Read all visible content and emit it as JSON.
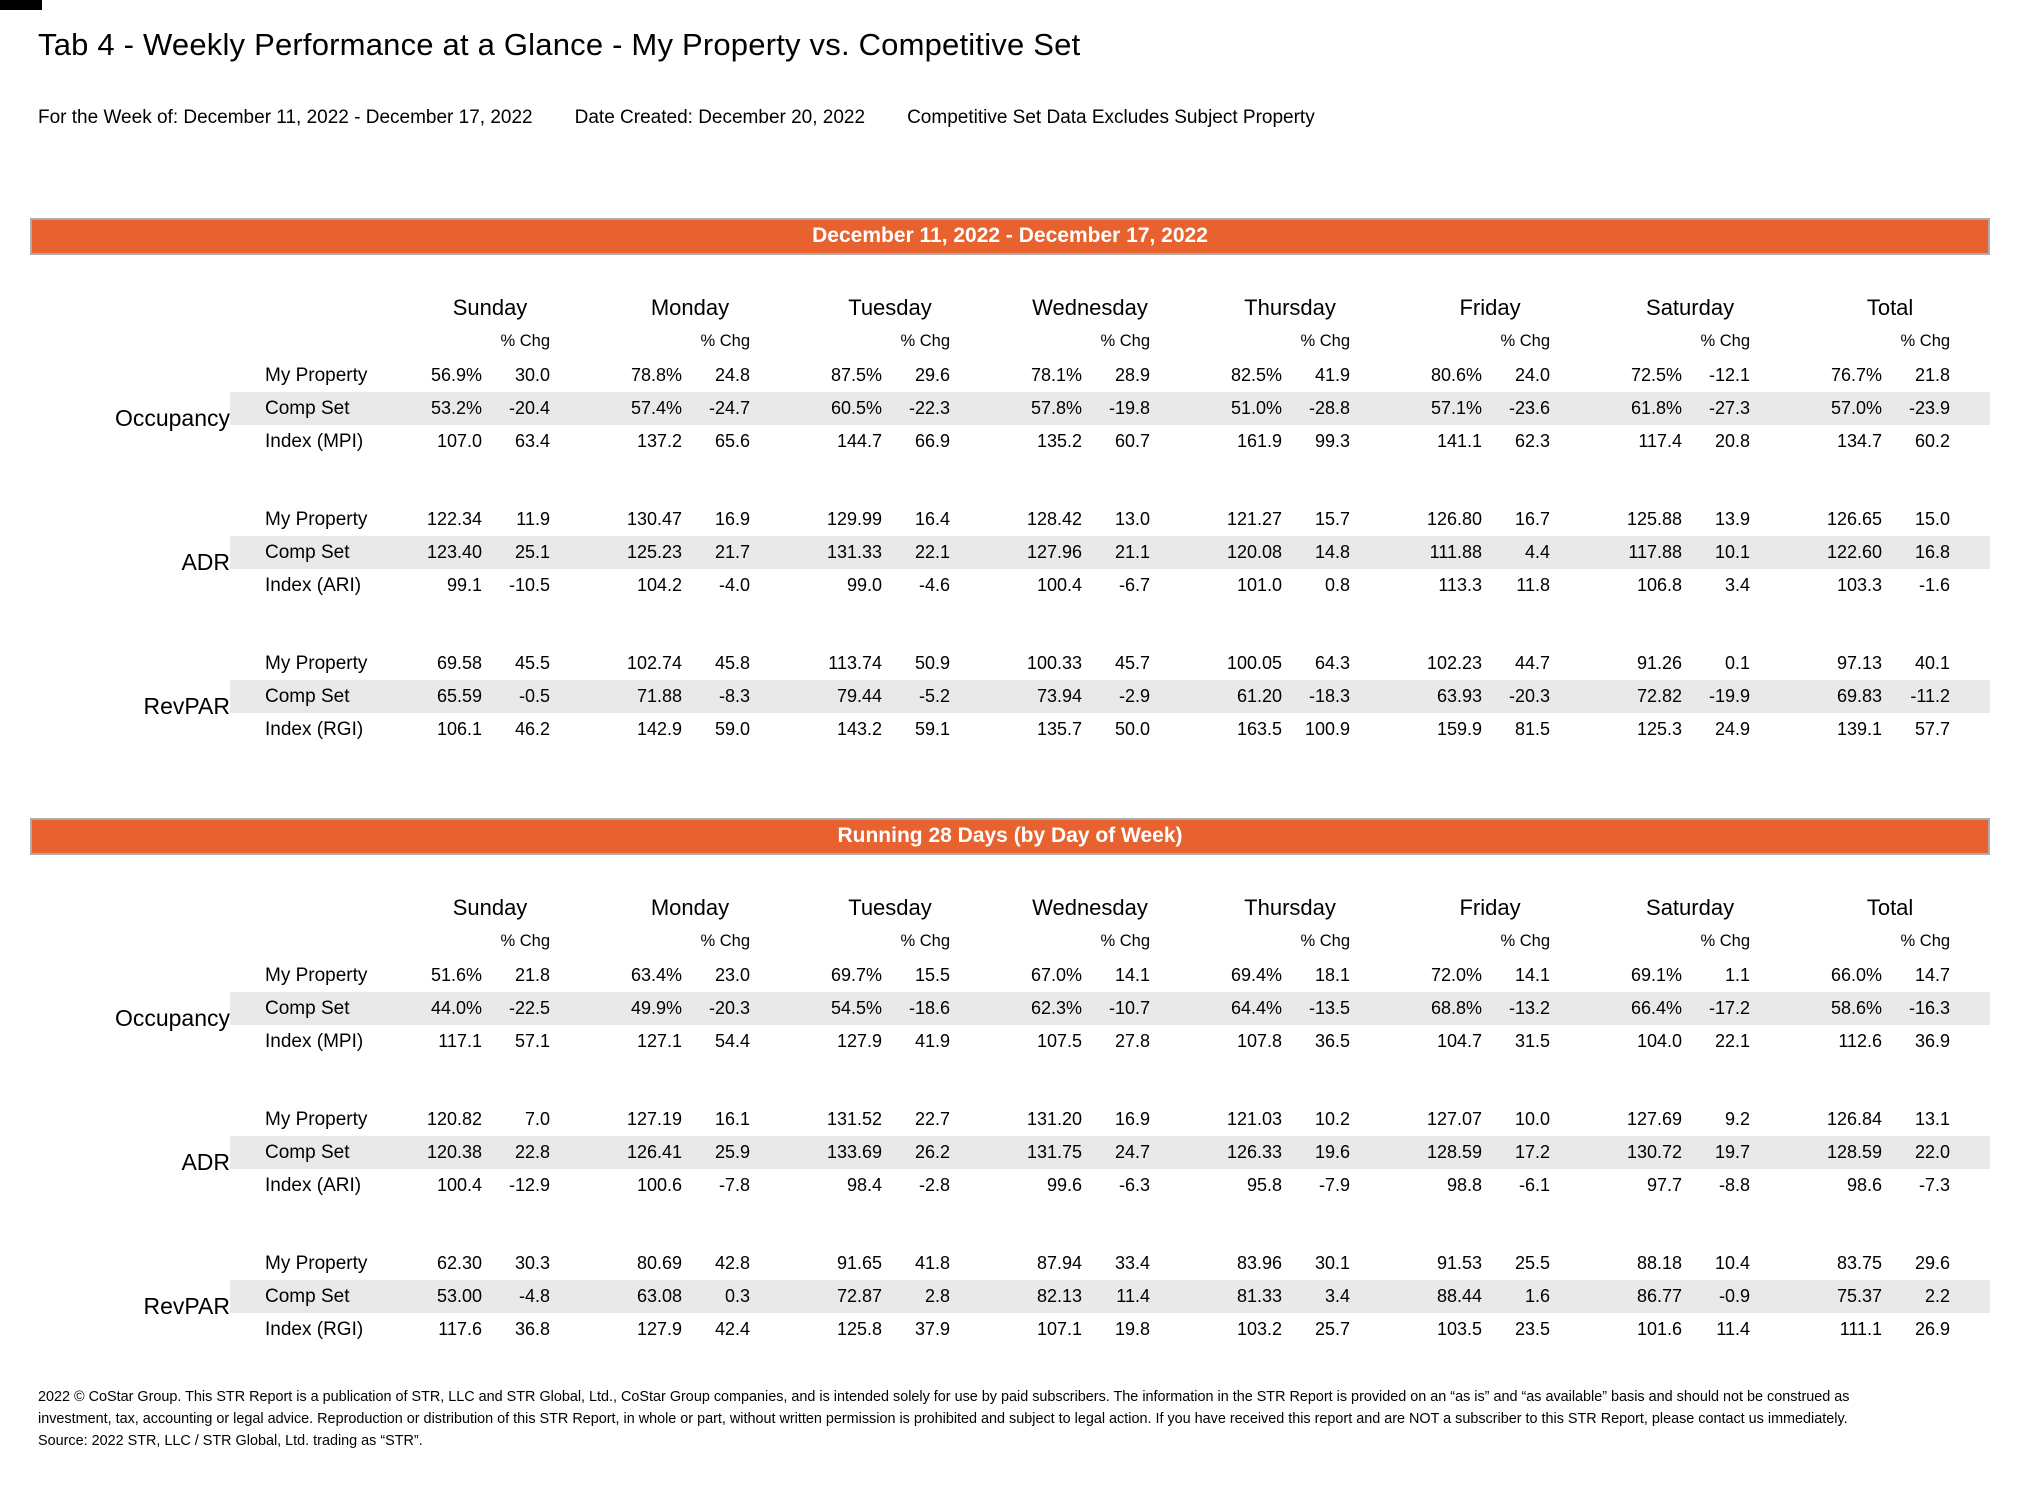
{
  "page": {
    "title": "Tab 4 - Weekly Performance at a Glance - My Property vs. Competitive Set",
    "week_of": "For the Week of: December 11, 2022 - December 17, 2022",
    "date_created": "Date Created: December 20, 2022",
    "note": "Competitive Set Data Excludes Subject Property"
  },
  "colors": {
    "banner_bg": "#E7622E",
    "banner_border": "#ACACAC",
    "banner_text": "#FFFFFF",
    "shaded_row": "#E9E9E9"
  },
  "columns": {
    "days": [
      "Sunday",
      "Monday",
      "Tuesday",
      "Wednesday",
      "Thursday",
      "Friday",
      "Saturday",
      "Total"
    ],
    "pct_chg_label": "% Chg"
  },
  "sections": [
    {
      "banner": "December 11, 2022 - December 17, 2022",
      "metrics": [
        {
          "name": "Occupancy",
          "rows": [
            {
              "label": "My Property",
              "cells": [
                [
                  "56.9%",
                  "30.0"
                ],
                [
                  "78.8%",
                  "24.8"
                ],
                [
                  "87.5%",
                  "29.6"
                ],
                [
                  "78.1%",
                  "28.9"
                ],
                [
                  "82.5%",
                  "41.9"
                ],
                [
                  "80.6%",
                  "24.0"
                ],
                [
                  "72.5%",
                  "-12.1"
                ],
                [
                  "76.7%",
                  "21.8"
                ]
              ]
            },
            {
              "label": "Comp Set",
              "cells": [
                [
                  "53.2%",
                  "-20.4"
                ],
                [
                  "57.4%",
                  "-24.7"
                ],
                [
                  "60.5%",
                  "-22.3"
                ],
                [
                  "57.8%",
                  "-19.8"
                ],
                [
                  "51.0%",
                  "-28.8"
                ],
                [
                  "57.1%",
                  "-23.6"
                ],
                [
                  "61.8%",
                  "-27.3"
                ],
                [
                  "57.0%",
                  "-23.9"
                ]
              ]
            },
            {
              "label": "Index (MPI)",
              "cells": [
                [
                  "107.0",
                  "63.4"
                ],
                [
                  "137.2",
                  "65.6"
                ],
                [
                  "144.7",
                  "66.9"
                ],
                [
                  "135.2",
                  "60.7"
                ],
                [
                  "161.9",
                  "99.3"
                ],
                [
                  "141.1",
                  "62.3"
                ],
                [
                  "117.4",
                  "20.8"
                ],
                [
                  "134.7",
                  "60.2"
                ]
              ]
            }
          ]
        },
        {
          "name": "ADR",
          "rows": [
            {
              "label": "My Property",
              "cells": [
                [
                  "122.34",
                  "11.9"
                ],
                [
                  "130.47",
                  "16.9"
                ],
                [
                  "129.99",
                  "16.4"
                ],
                [
                  "128.42",
                  "13.0"
                ],
                [
                  "121.27",
                  "15.7"
                ],
                [
                  "126.80",
                  "16.7"
                ],
                [
                  "125.88",
                  "13.9"
                ],
                [
                  "126.65",
                  "15.0"
                ]
              ]
            },
            {
              "label": "Comp Set",
              "cells": [
                [
                  "123.40",
                  "25.1"
                ],
                [
                  "125.23",
                  "21.7"
                ],
                [
                  "131.33",
                  "22.1"
                ],
                [
                  "127.96",
                  "21.1"
                ],
                [
                  "120.08",
                  "14.8"
                ],
                [
                  "111.88",
                  "4.4"
                ],
                [
                  "117.88",
                  "10.1"
                ],
                [
                  "122.60",
                  "16.8"
                ]
              ]
            },
            {
              "label": "Index (ARI)",
              "cells": [
                [
                  "99.1",
                  "-10.5"
                ],
                [
                  "104.2",
                  "-4.0"
                ],
                [
                  "99.0",
                  "-4.6"
                ],
                [
                  "100.4",
                  "-6.7"
                ],
                [
                  "101.0",
                  "0.8"
                ],
                [
                  "113.3",
                  "11.8"
                ],
                [
                  "106.8",
                  "3.4"
                ],
                [
                  "103.3",
                  "-1.6"
                ]
              ]
            }
          ]
        },
        {
          "name": "RevPAR",
          "rows": [
            {
              "label": "My Property",
              "cells": [
                [
                  "69.58",
                  "45.5"
                ],
                [
                  "102.74",
                  "45.8"
                ],
                [
                  "113.74",
                  "50.9"
                ],
                [
                  "100.33",
                  "45.7"
                ],
                [
                  "100.05",
                  "64.3"
                ],
                [
                  "102.23",
                  "44.7"
                ],
                [
                  "91.26",
                  "0.1"
                ],
                [
                  "97.13",
                  "40.1"
                ]
              ]
            },
            {
              "label": "Comp Set",
              "cells": [
                [
                  "65.59",
                  "-0.5"
                ],
                [
                  "71.88",
                  "-8.3"
                ],
                [
                  "79.44",
                  "-5.2"
                ],
                [
                  "73.94",
                  "-2.9"
                ],
                [
                  "61.20",
                  "-18.3"
                ],
                [
                  "63.93",
                  "-20.3"
                ],
                [
                  "72.82",
                  "-19.9"
                ],
                [
                  "69.83",
                  "-11.2"
                ]
              ]
            },
            {
              "label": "Index (RGI)",
              "cells": [
                [
                  "106.1",
                  "46.2"
                ],
                [
                  "142.9",
                  "59.0"
                ],
                [
                  "143.2",
                  "59.1"
                ],
                [
                  "135.7",
                  "50.0"
                ],
                [
                  "163.5",
                  "100.9"
                ],
                [
                  "159.9",
                  "81.5"
                ],
                [
                  "125.3",
                  "24.9"
                ],
                [
                  "139.1",
                  "57.7"
                ]
              ]
            }
          ]
        }
      ]
    },
    {
      "banner": "Running 28 Days (by Day of Week)",
      "metrics": [
        {
          "name": "Occupancy",
          "rows": [
            {
              "label": "My Property",
              "cells": [
                [
                  "51.6%",
                  "21.8"
                ],
                [
                  "63.4%",
                  "23.0"
                ],
                [
                  "69.7%",
                  "15.5"
                ],
                [
                  "67.0%",
                  "14.1"
                ],
                [
                  "69.4%",
                  "18.1"
                ],
                [
                  "72.0%",
                  "14.1"
                ],
                [
                  "69.1%",
                  "1.1"
                ],
                [
                  "66.0%",
                  "14.7"
                ]
              ]
            },
            {
              "label": "Comp Set",
              "cells": [
                [
                  "44.0%",
                  "-22.5"
                ],
                [
                  "49.9%",
                  "-20.3"
                ],
                [
                  "54.5%",
                  "-18.6"
                ],
                [
                  "62.3%",
                  "-10.7"
                ],
                [
                  "64.4%",
                  "-13.5"
                ],
                [
                  "68.8%",
                  "-13.2"
                ],
                [
                  "66.4%",
                  "-17.2"
                ],
                [
                  "58.6%",
                  "-16.3"
                ]
              ]
            },
            {
              "label": "Index (MPI)",
              "cells": [
                [
                  "117.1",
                  "57.1"
                ],
                [
                  "127.1",
                  "54.4"
                ],
                [
                  "127.9",
                  "41.9"
                ],
                [
                  "107.5",
                  "27.8"
                ],
                [
                  "107.8",
                  "36.5"
                ],
                [
                  "104.7",
                  "31.5"
                ],
                [
                  "104.0",
                  "22.1"
                ],
                [
                  "112.6",
                  "36.9"
                ]
              ]
            }
          ]
        },
        {
          "name": "ADR",
          "rows": [
            {
              "label": "My Property",
              "cells": [
                [
                  "120.82",
                  "7.0"
                ],
                [
                  "127.19",
                  "16.1"
                ],
                [
                  "131.52",
                  "22.7"
                ],
                [
                  "131.20",
                  "16.9"
                ],
                [
                  "121.03",
                  "10.2"
                ],
                [
                  "127.07",
                  "10.0"
                ],
                [
                  "127.69",
                  "9.2"
                ],
                [
                  "126.84",
                  "13.1"
                ]
              ]
            },
            {
              "label": "Comp Set",
              "cells": [
                [
                  "120.38",
                  "22.8"
                ],
                [
                  "126.41",
                  "25.9"
                ],
                [
                  "133.69",
                  "26.2"
                ],
                [
                  "131.75",
                  "24.7"
                ],
                [
                  "126.33",
                  "19.6"
                ],
                [
                  "128.59",
                  "17.2"
                ],
                [
                  "130.72",
                  "19.7"
                ],
                [
                  "128.59",
                  "22.0"
                ]
              ]
            },
            {
              "label": "Index (ARI)",
              "cells": [
                [
                  "100.4",
                  "-12.9"
                ],
                [
                  "100.6",
                  "-7.8"
                ],
                [
                  "98.4",
                  "-2.8"
                ],
                [
                  "99.6",
                  "-6.3"
                ],
                [
                  "95.8",
                  "-7.9"
                ],
                [
                  "98.8",
                  "-6.1"
                ],
                [
                  "97.7",
                  "-8.8"
                ],
                [
                  "98.6",
                  "-7.3"
                ]
              ]
            }
          ]
        },
        {
          "name": "RevPAR",
          "rows": [
            {
              "label": "My Property",
              "cells": [
                [
                  "62.30",
                  "30.3"
                ],
                [
                  "80.69",
                  "42.8"
                ],
                [
                  "91.65",
                  "41.8"
                ],
                [
                  "87.94",
                  "33.4"
                ],
                [
                  "83.96",
                  "30.1"
                ],
                [
                  "91.53",
                  "25.5"
                ],
                [
                  "88.18",
                  "10.4"
                ],
                [
                  "83.75",
                  "29.6"
                ]
              ]
            },
            {
              "label": "Comp Set",
              "cells": [
                [
                  "53.00",
                  "-4.8"
                ],
                [
                  "63.08",
                  "0.3"
                ],
                [
                  "72.87",
                  "2.8"
                ],
                [
                  "82.13",
                  "11.4"
                ],
                [
                  "81.33",
                  "3.4"
                ],
                [
                  "88.44",
                  "1.6"
                ],
                [
                  "86.77",
                  "-0.9"
                ],
                [
                  "75.37",
                  "2.2"
                ]
              ]
            },
            {
              "label": "Index (RGI)",
              "cells": [
                [
                  "117.6",
                  "36.8"
                ],
                [
                  "127.9",
                  "42.4"
                ],
                [
                  "125.8",
                  "37.9"
                ],
                [
                  "107.1",
                  "19.8"
                ],
                [
                  "103.2",
                  "25.7"
                ],
                [
                  "103.5",
                  "23.5"
                ],
                [
                  "101.6",
                  "11.4"
                ],
                [
                  "111.1",
                  "26.9"
                ]
              ]
            }
          ]
        }
      ]
    }
  ],
  "footer": {
    "line1": "2022 © CoStar Group. This STR Report is a publication of STR, LLC and STR Global, Ltd., CoStar Group companies, and is intended solely for use by paid subscribers. The information in the STR Report is provided on an “as is” and “as available” basis and should not be construed as",
    "line2": "investment, tax, accounting or legal advice. Reproduction or distribution of this STR Report, in whole or part, without written permission is prohibited and subject to legal action. If you have received this report and are NOT a subscriber to this STR Report, please contact us immediately.",
    "line3": "Source: 2022 STR, LLC / STR Global, Ltd. trading as “STR”."
  }
}
